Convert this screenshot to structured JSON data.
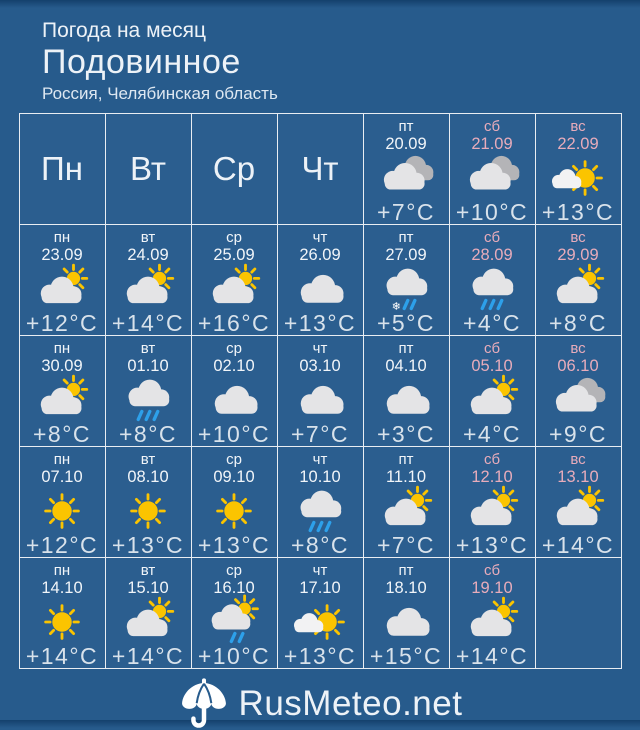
{
  "header": {
    "pretitle": "Погода на месяц",
    "title": "Подовинное",
    "subtitle": "Россия, Челябинская область"
  },
  "calendar": {
    "rows": [
      [
        {
          "type": "weekday-header",
          "label": "Пн"
        },
        {
          "type": "weekday-header",
          "label": "Вт"
        },
        {
          "type": "weekday-header",
          "label": "Ср"
        },
        {
          "type": "weekday-header",
          "label": "Чт"
        },
        {
          "type": "day",
          "day": "пт",
          "date": "20.09",
          "icon": "cloudy",
          "temp": "+7°C",
          "weekend": false
        },
        {
          "type": "day",
          "day": "сб",
          "date": "21.09",
          "icon": "cloudy",
          "temp": "+10°C",
          "weekend": true
        },
        {
          "type": "day",
          "day": "вс",
          "date": "22.09",
          "icon": "sun-cloud",
          "temp": "+13°C",
          "weekend": true
        }
      ],
      [
        {
          "type": "day",
          "day": "пн",
          "date": "23.09",
          "icon": "cloud-sun",
          "temp": "+12°C",
          "weekend": false
        },
        {
          "type": "day",
          "day": "вт",
          "date": "24.09",
          "icon": "cloud-sun",
          "temp": "+14°C",
          "weekend": false
        },
        {
          "type": "day",
          "day": "ср",
          "date": "25.09",
          "icon": "cloud-sun",
          "temp": "+16°C",
          "weekend": false
        },
        {
          "type": "day",
          "day": "чт",
          "date": "26.09",
          "icon": "cloud",
          "temp": "+13°C",
          "weekend": false
        },
        {
          "type": "day",
          "day": "пт",
          "date": "27.09",
          "icon": "sleet",
          "temp": "+5°C",
          "weekend": false
        },
        {
          "type": "day",
          "day": "сб",
          "date": "28.09",
          "icon": "rain",
          "temp": "+4°C",
          "weekend": true
        },
        {
          "type": "day",
          "day": "вс",
          "date": "29.09",
          "icon": "cloud-sun",
          "temp": "+8°C",
          "weekend": true
        }
      ],
      [
        {
          "type": "day",
          "day": "пн",
          "date": "30.09",
          "icon": "cloud-sun",
          "temp": "+8°C",
          "weekend": false
        },
        {
          "type": "day",
          "day": "вт",
          "date": "01.10",
          "icon": "rain",
          "temp": "+8°C",
          "weekend": false
        },
        {
          "type": "day",
          "day": "ср",
          "date": "02.10",
          "icon": "cloud",
          "temp": "+10°C",
          "weekend": false
        },
        {
          "type": "day",
          "day": "чт",
          "date": "03.10",
          "icon": "cloud",
          "temp": "+7°C",
          "weekend": false
        },
        {
          "type": "day",
          "day": "пт",
          "date": "04.10",
          "icon": "cloud",
          "temp": "+3°C",
          "weekend": false
        },
        {
          "type": "day",
          "day": "сб",
          "date": "05.10",
          "icon": "cloud-sun",
          "temp": "+4°C",
          "weekend": true
        },
        {
          "type": "day",
          "day": "вс",
          "date": "06.10",
          "icon": "cloudy",
          "temp": "+9°C",
          "weekend": true
        }
      ],
      [
        {
          "type": "day",
          "day": "пн",
          "date": "07.10",
          "icon": "sun",
          "temp": "+12°C",
          "weekend": false
        },
        {
          "type": "day",
          "day": "вт",
          "date": "08.10",
          "icon": "sun",
          "temp": "+13°C",
          "weekend": false
        },
        {
          "type": "day",
          "day": "ср",
          "date": "09.10",
          "icon": "sun",
          "temp": "+13°C",
          "weekend": false
        },
        {
          "type": "day",
          "day": "чт",
          "date": "10.10",
          "icon": "rain",
          "temp": "+8°C",
          "weekend": false
        },
        {
          "type": "day",
          "day": "пт",
          "date": "11.10",
          "icon": "cloud-sun",
          "temp": "+7°C",
          "weekend": false
        },
        {
          "type": "day",
          "day": "сб",
          "date": "12.10",
          "icon": "cloud-sun",
          "temp": "+13°C",
          "weekend": true
        },
        {
          "type": "day",
          "day": "вс",
          "date": "13.10",
          "icon": "cloud-sun",
          "temp": "+14°C",
          "weekend": true
        }
      ],
      [
        {
          "type": "day",
          "day": "пн",
          "date": "14.10",
          "icon": "sun",
          "temp": "+14°C",
          "weekend": false
        },
        {
          "type": "day",
          "day": "вт",
          "date": "15.10",
          "icon": "cloud-sun",
          "temp": "+14°C",
          "weekend": false
        },
        {
          "type": "day",
          "day": "ср",
          "date": "16.10",
          "icon": "cloud-sun-rain",
          "temp": "+10°C",
          "weekend": false
        },
        {
          "type": "day",
          "day": "чт",
          "date": "17.10",
          "icon": "sun-cloud",
          "temp": "+13°C",
          "weekend": false
        },
        {
          "type": "day",
          "day": "пт",
          "date": "18.10",
          "icon": "cloud",
          "temp": "+15°C",
          "weekend": false
        },
        {
          "type": "day",
          "day": "сб",
          "date": "19.10",
          "icon": "cloud-sun",
          "temp": "+14°C",
          "weekend": true
        },
        {
          "type": "empty"
        }
      ]
    ]
  },
  "footer": {
    "brand": "RusMeteo.net",
    "logo_icon": "umbrella-icon"
  },
  "colors": {
    "sun": "#fbc400",
    "cloud_light": "#e4e4e6",
    "cloud_dark": "#b4b4b7",
    "rain_blue": "#2da0ea",
    "weekend_pink": "#e8acbb",
    "cell_bg": "#2b5e8f",
    "page_bg": "#275b8c",
    "border": "#e9edf2"
  }
}
